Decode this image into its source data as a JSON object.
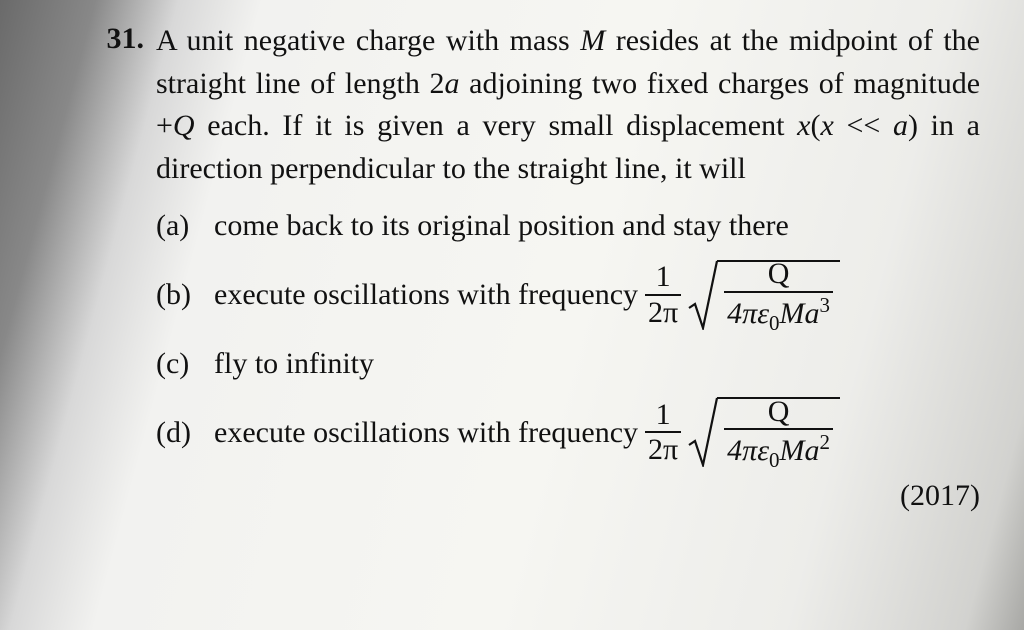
{
  "question": {
    "number": "31.",
    "stem_parts": [
      "A unit negative charge with mass ",
      {
        "ital": "M"
      },
      " resides at the midpoint of the straight line of length 2",
      {
        "ital": "a"
      },
      " adjoining two fixed charges of magnitude +",
      {
        "ital": "Q"
      },
      " each. If it is given a very small displacement ",
      {
        "ital": "x"
      },
      "(",
      {
        "ital": "x"
      },
      " << ",
      {
        "ital": "a"
      },
      ") in a direction perpendicular to the straight line, it will"
    ],
    "options": {
      "a": {
        "label": "(a)",
        "text": "come back to its original position and stay there"
      },
      "b": {
        "label": "(b)",
        "prefix": "execute oscillations with frequency",
        "formula": {
          "lead_frac": {
            "num": "1",
            "den": "2π"
          },
          "sqrt_frac": {
            "num": "Q",
            "den_parts": [
              "4πε",
              {
                "sub": "0"
              },
              "Ma",
              {
                "sup": "3"
              }
            ]
          }
        }
      },
      "c": {
        "label": "(c)",
        "text": "fly to infinity"
      },
      "d": {
        "label": "(d)",
        "prefix": "execute oscillations with frequency",
        "formula": {
          "lead_frac": {
            "num": "1",
            "den": "2π"
          },
          "sqrt_frac": {
            "num": "Q",
            "den_parts": [
              "4πε",
              {
                "sub": "0"
              },
              "Ma",
              {
                "sup": "2"
              }
            ]
          }
        }
      }
    },
    "year": "(2017)"
  },
  "style": {
    "font_size_pt": 30,
    "text_color": "#111111",
    "rule_color": "#111111"
  }
}
